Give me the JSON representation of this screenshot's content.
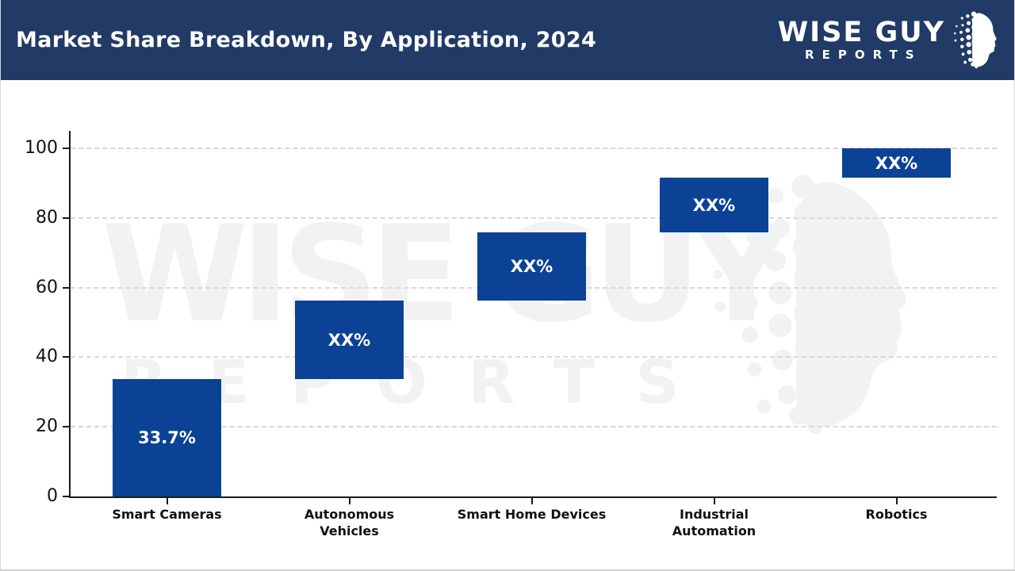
{
  "header": {
    "title": "Market Share Breakdown, By Application, 2024",
    "logo": {
      "line1": "WISE GUY",
      "line2": "REPORTS"
    }
  },
  "watermark": {
    "line1": "WISE GUY",
    "line2": "REPORTS"
  },
  "colors": {
    "header_bg": "#213a66",
    "title_text": "#ffffff",
    "bar": "#0b4295",
    "bar_label": "#ffffff",
    "axis": "#1a1a1a",
    "tick_label": "#111111",
    "grid": "#d9d9d9",
    "watermark": "#f2f2f4",
    "frame": "#d6d6d6"
  },
  "chart_data": {
    "type": "bar",
    "subtype": "waterfall",
    "title": "Market Share Breakdown, By Application, 2024",
    "categories": [
      "Smart Cameras",
      "Autonomous\nVehicles",
      "Smart Home Devices",
      "Industrial\nAutomation",
      "Robotics"
    ],
    "segments": [
      {
        "category": "Smart Cameras",
        "start": 0,
        "end": 33.7,
        "label": "33.7%"
      },
      {
        "category": "Autonomous Vehicles",
        "start": 33.7,
        "end": 56.2,
        "label": "XX%"
      },
      {
        "category": "Smart Home Devices",
        "start": 56.2,
        "end": 75.8,
        "label": "XX%"
      },
      {
        "category": "Industrial Automation",
        "start": 75.8,
        "end": 91.5,
        "label": "XX%"
      },
      {
        "category": "Robotics",
        "start": 91.5,
        "end": 100,
        "label": "XX%"
      }
    ],
    "yticks": [
      0,
      20,
      40,
      60,
      80,
      100
    ],
    "ylim": [
      0,
      105
    ],
    "xlabel": "",
    "ylabel": "",
    "grid": "horizontal-dashed",
    "legend": "none"
  }
}
